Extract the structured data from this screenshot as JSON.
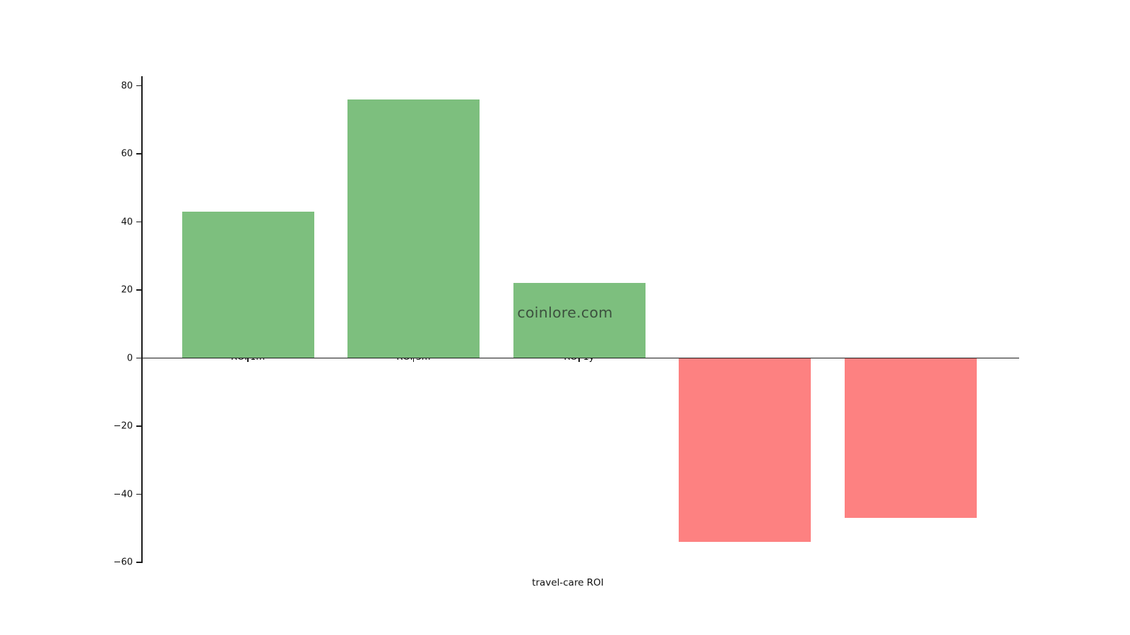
{
  "watermark": {
    "text": "coinlore.com",
    "color": "#3c513e"
  },
  "chart_data": {
    "type": "bar",
    "title": "travel-care ROI",
    "categories": [
      "ROI 1m",
      "ROI 3m",
      "ROI 1y",
      "",
      ""
    ],
    "values": [
      43,
      76,
      22,
      -54,
      -47
    ],
    "bar_names": [
      "roi-1m",
      "roi-3m",
      "roi-1y",
      "roi-neg-1",
      "roi-neg-2"
    ],
    "yticks": [
      {
        "value": 80,
        "label": "80"
      },
      {
        "value": 60,
        "label": "60"
      },
      {
        "value": 40,
        "label": "40"
      },
      {
        "value": 20,
        "label": "20"
      },
      {
        "value": 0,
        "label": "0"
      },
      {
        "value": -20,
        "label": "−20"
      },
      {
        "value": -40,
        "label": "−40"
      },
      {
        "value": -60,
        "label": "−60"
      }
    ],
    "ylim": [
      -60,
      80
    ],
    "xlabel": "",
    "ylabel": "",
    "grid": false,
    "legend": "none",
    "colors": {
      "positive": "#7dbf7e",
      "negative": "#fd8181",
      "axis": "#1a1a1a"
    }
  }
}
